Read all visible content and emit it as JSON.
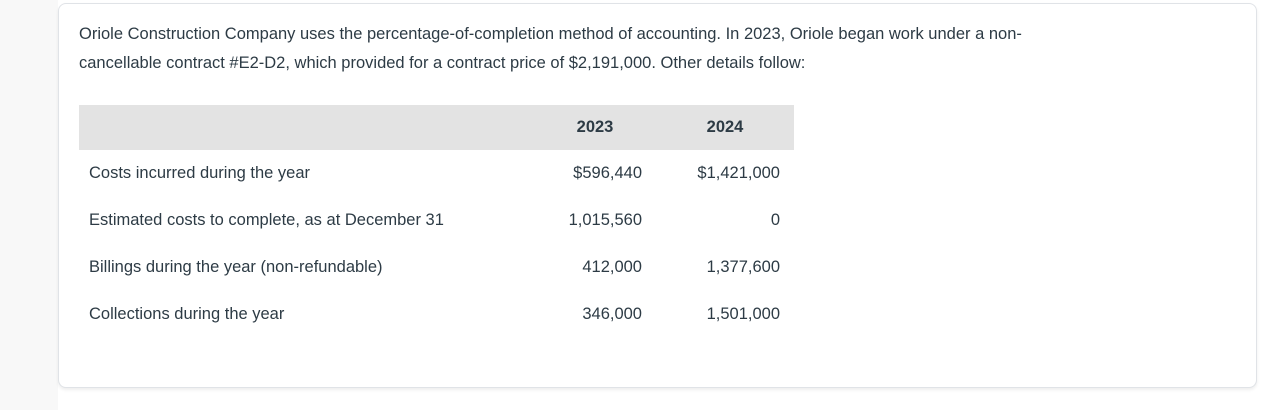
{
  "colors": {
    "text": "#2d3b45",
    "table_header_bg": "#e3e3e3",
    "card_border": "#e0e3e7",
    "gutter_bg": "#f8f8f8"
  },
  "question": {
    "line1": "Oriole Construction Company uses the percentage-of-completion method of accounting. In 2023, Oriole began work under a non-",
    "line2": "cancellable contract #E2-D2, which provided for a contract price of $2,191,000. Other details follow:"
  },
  "table": {
    "column_headers": [
      "2023",
      "2024"
    ],
    "rows": [
      {
        "label": "Costs incurred during the year",
        "y2023": "$596,440",
        "y2024": "$1,421,000"
      },
      {
        "label": "Estimated costs to complete, as at December 31",
        "y2023": "1,015,560",
        "y2024": "0"
      },
      {
        "label": "Billings during the year (non-refundable)",
        "y2023": "412,000",
        "y2024": "1,377,600"
      },
      {
        "label": "Collections during the year",
        "y2023": "346,000",
        "y2024": "1,501,000"
      }
    ]
  }
}
